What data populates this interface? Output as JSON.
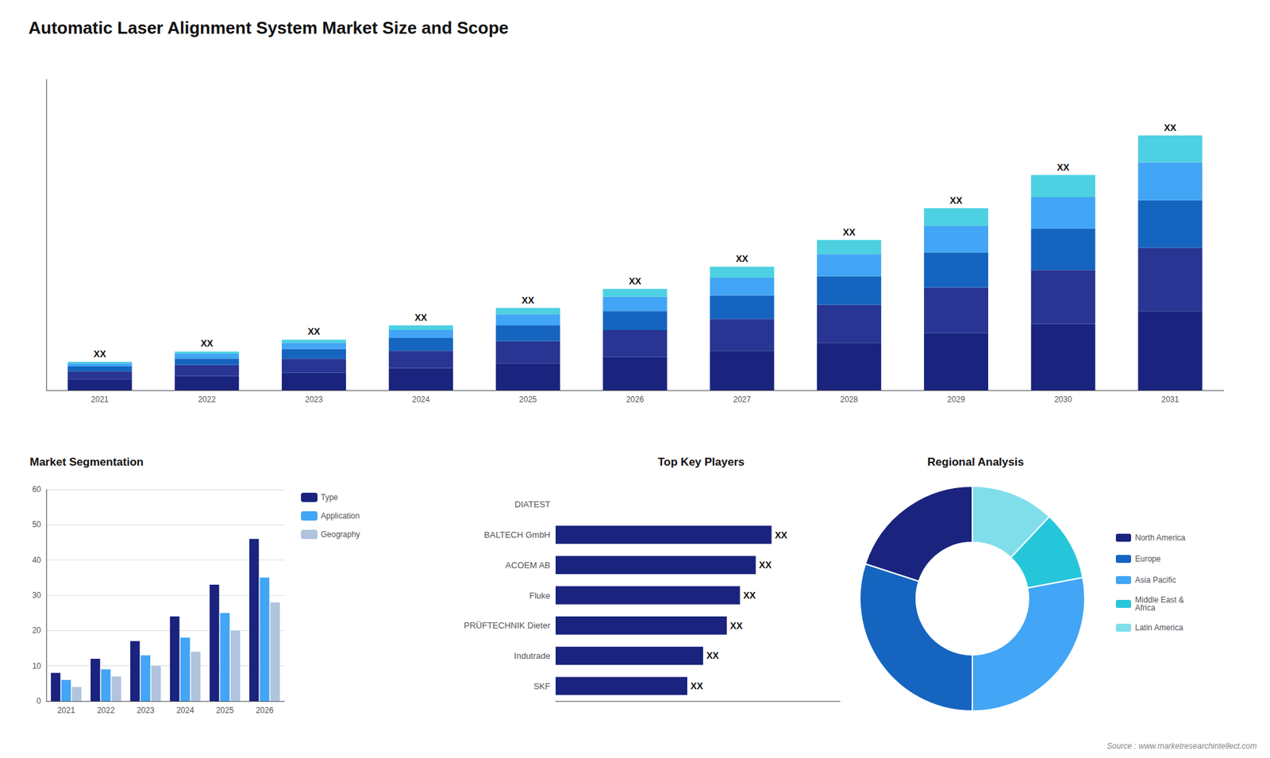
{
  "chart_data": [
    {
      "type": "bar",
      "title": "Automatic Laser Alignment System Market Size and Scope",
      "stacked": true,
      "categories": [
        "2021",
        "2022",
        "2023",
        "2024",
        "2025",
        "2026",
        "2027",
        "2028",
        "2029",
        "2030",
        "2031"
      ],
      "series": [
        {
          "color": "#1a237e",
          "values": [
            0.7,
            0.9,
            1.1,
            1.4,
            1.7,
            2.1,
            2.5,
            3.0,
            3.6,
            4.2,
            5.0
          ]
        },
        {
          "color": "#283593",
          "values": [
            0.5,
            0.7,
            0.9,
            1.1,
            1.4,
            1.7,
            2.0,
            2.4,
            2.9,
            3.4,
            4.0
          ]
        },
        {
          "color": "#1565c0",
          "values": [
            0.3,
            0.4,
            0.6,
            0.8,
            1.0,
            1.2,
            1.5,
            1.8,
            2.2,
            2.6,
            3.0
          ]
        },
        {
          "color": "#42a5f5",
          "values": [
            0.2,
            0.3,
            0.4,
            0.5,
            0.7,
            0.9,
            1.1,
            1.4,
            1.7,
            2.0,
            2.4
          ]
        },
        {
          "color": "#4dd0e1",
          "values": [
            0.1,
            0.15,
            0.2,
            0.3,
            0.4,
            0.5,
            0.7,
            0.9,
            1.1,
            1.4,
            1.7
          ],
          "value_labels": [
            "XX",
            "XX",
            "XX",
            "XX",
            "XX",
            "XX",
            "XX",
            "XX",
            "XX",
            "XX",
            "XX"
          ]
        }
      ],
      "ylim": [
        0,
        19.642
      ],
      "grid": false,
      "tick_labels": "x"
    },
    {
      "type": "bar",
      "title": "Market Segmentation",
      "categories": [
        "2021",
        "2022",
        "2023",
        "2024",
        "2025",
        "2026"
      ],
      "series": [
        {
          "name": "Type",
          "color": "#1a237e",
          "values": [
            8,
            12,
            17,
            24,
            33,
            46
          ]
        },
        {
          "name": "Application",
          "color": "#42a5f5",
          "values": [
            6,
            9,
            13,
            18,
            25,
            35
          ]
        },
        {
          "name": "Geography",
          "color": "#b0c4de",
          "values": [
            4,
            7,
            10,
            14,
            20,
            28
          ]
        }
      ],
      "ylim": [
        0,
        60
      ],
      "yticks": [
        0,
        10,
        20,
        30,
        40,
        50,
        60
      ],
      "grid": true,
      "legend": "right"
    },
    {
      "type": "bar",
      "orientation": "horizontal",
      "title": "Top Key Players",
      "categories": [
        "DIATEST",
        "BALTECH GmbH",
        "ACOEM AB",
        "Fluke",
        "PRÜFTECHNIK Dieter",
        "Indutrade",
        "SKF"
      ],
      "values": [
        0,
        82,
        76,
        70,
        65,
        56,
        50
      ],
      "value_labels": [
        null,
        "XX",
        "XX",
        "XX",
        "XX",
        "XX",
        "XX"
      ],
      "color": "#1a237e",
      "xlim": [
        0,
        108
      ],
      "grid": false,
      "tick_labels": "y"
    },
    {
      "type": "pie",
      "title": "Regional Analysis",
      "categories": [
        "Latin America",
        "Middle East &\nAfrica",
        "Asia Pacific",
        "Europe",
        "North America"
      ],
      "values": [
        12,
        10,
        28,
        30,
        20
      ],
      "colors": [
        "#80deea",
        "#26c6da",
        "#42a5f5",
        "#1565c0",
        "#1a237e"
      ],
      "legend": "right",
      "annotations": [
        "Source : www.marketresearchintellect.com"
      ]
    }
  ]
}
